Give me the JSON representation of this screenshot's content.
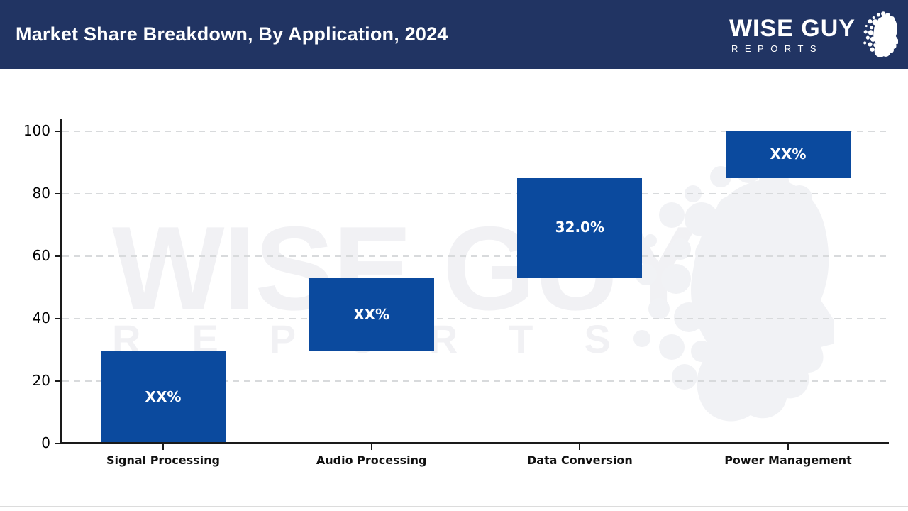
{
  "header": {
    "title": "Market Share Breakdown, By Application, 2024",
    "bg_color": "#213463",
    "logo": {
      "line1": "WISE GUY",
      "line2": "REPORTS"
    }
  },
  "watermark": {
    "line1": "WISE GUY",
    "line2": "REPORTS"
  },
  "chart_data": {
    "type": "bar",
    "subtype": "floating-waterfall",
    "title": "Market Share Breakdown, By Application, 2024",
    "categories": [
      "Signal Processing",
      "Audio Processing",
      "Data Conversion",
      "Power Management"
    ],
    "segments": [
      {
        "category": "Signal Processing",
        "start": 0,
        "end": 29.5,
        "label": "XX%"
      },
      {
        "category": "Audio Processing",
        "start": 29.5,
        "end": 53.0,
        "label": "XX%"
      },
      {
        "category": "Data Conversion",
        "start": 53.0,
        "end": 85.0,
        "label": "32.0%"
      },
      {
        "category": "Power Management",
        "start": 85.0,
        "end": 100.0,
        "label": "XX%"
      }
    ],
    "y_ticks": [
      0,
      20,
      40,
      60,
      80,
      100
    ],
    "ylim": [
      0,
      100
    ],
    "xlabel": "",
    "ylabel": "",
    "bar_color": "#0b4a9e",
    "grid": "horizontal-dashed",
    "legend": "none"
  }
}
